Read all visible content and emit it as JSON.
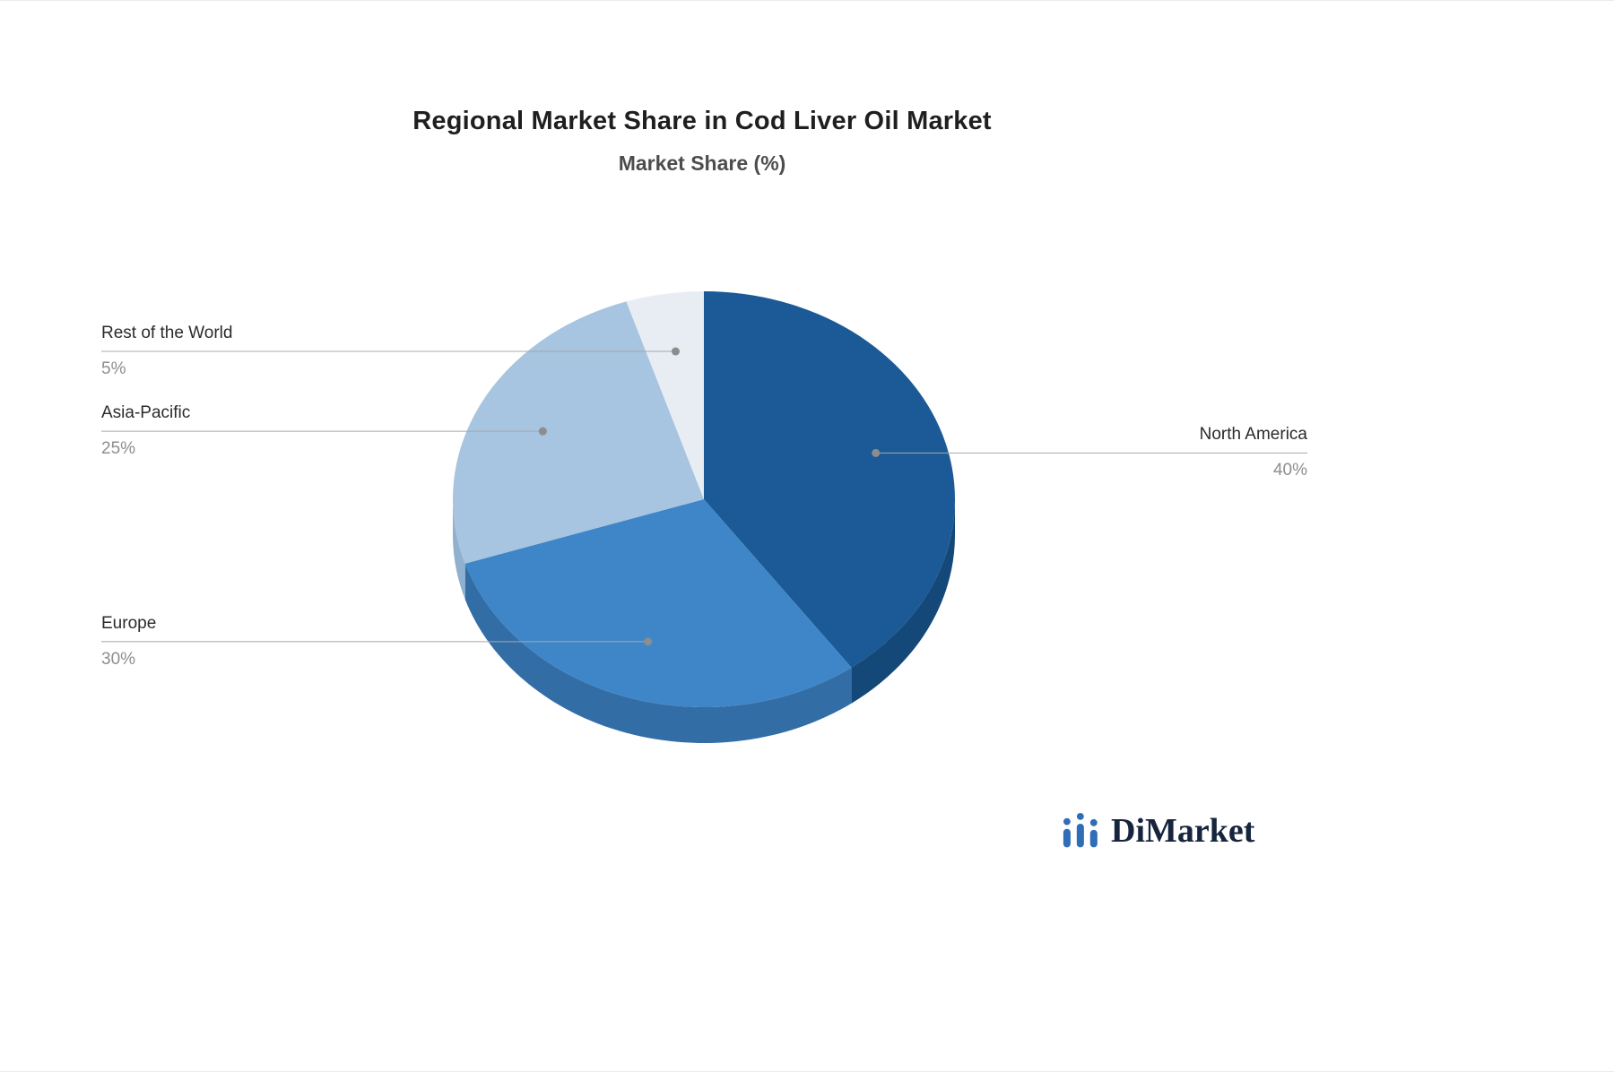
{
  "chart_data": {
    "type": "pie",
    "title": "Regional Market Share in Cod Liver Oil Market",
    "subtitle": "Market Share (%)",
    "direction": "clockwise",
    "start_angle_deg": 0,
    "labels_position": "outside-with-leader-lines",
    "slices": [
      {
        "label": "North America",
        "value": 40,
        "display": "40%",
        "color": "#1b5a96",
        "side_color": "#144878"
      },
      {
        "label": "Europe",
        "value": 30,
        "display": "30%",
        "color": "#3e86c7",
        "side_color": "#326da6"
      },
      {
        "label": "Asia-Pacific",
        "value": 25,
        "display": "25%",
        "color": "#a7c4e0",
        "side_color": "#8fb0cf"
      },
      {
        "label": "Rest of the World",
        "value": 5,
        "display": "5%",
        "color": "#e8edf4",
        "side_color": "#c9d4e0"
      }
    ],
    "leader_line_color": "#a8a8a8",
    "leader_dot_color": "#8d8d8d"
  },
  "logo": {
    "text": "DiMarket",
    "icon_color": "#2f6db5"
  }
}
